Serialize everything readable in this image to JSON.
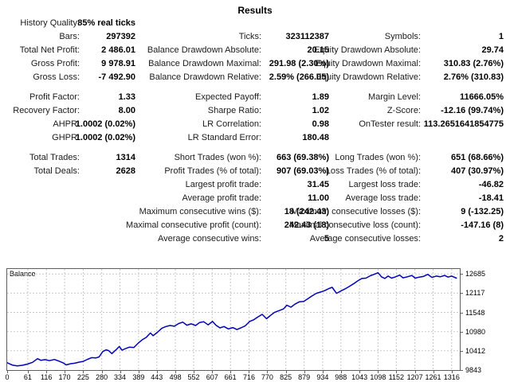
{
  "title": "Results",
  "stats_sections": [
    [
      [
        "History Quality:",
        "85% real ticks",
        "",
        "",
        "",
        ""
      ],
      [
        "Bars:",
        "297392",
        "Ticks:",
        "323112387",
        "Symbols:",
        "1"
      ],
      [
        "Total Net Profit:",
        "2 486.01",
        "Balance Drawdown Absolute:",
        "20.15",
        "Equity Drawdown Absolute:",
        "29.74"
      ],
      [
        "Gross Profit:",
        "9 978.91",
        "Balance Drawdown Maximal:",
        "291.98 (2.30%)",
        "Equity Drawdown Maximal:",
        "310.83 (2.76%)"
      ],
      [
        "Gross Loss:",
        "-7 492.90",
        "Balance Drawdown Relative:",
        "2.59% (266.05)",
        "Equity Drawdown Relative:",
        "2.76% (310.83)"
      ]
    ],
    [
      [
        "Profit Factor:",
        "1.33",
        "Expected Payoff:",
        "1.89",
        "Margin Level:",
        "11666.05%"
      ],
      [
        "Recovery Factor:",
        "8.00",
        "Sharpe Ratio:",
        "1.02",
        "Z-Score:",
        "-12.16 (99.74%)"
      ],
      [
        "AHPR:",
        "1.0002 (0.02%)",
        "LR Correlation:",
        "0.98",
        "OnTester result:",
        "113.2651641854775"
      ],
      [
        "GHPR:",
        "1.0002 (0.02%)",
        "LR Standard Error:",
        "180.48",
        "",
        ""
      ]
    ],
    [
      [
        "Total Trades:",
        "1314",
        "Short Trades (won %):",
        "663 (69.38%)",
        "Long Trades (won %):",
        "651 (68.66%)"
      ],
      [
        "Total Deals:",
        "2628",
        "Profit Trades (% of total):",
        "907 (69.03%)",
        "Loss Trades (% of total):",
        "407 (30.97%)"
      ],
      [
        "",
        "",
        "Largest profit trade:",
        "31.45",
        "Largest loss trade:",
        "-46.82"
      ],
      [
        "",
        "",
        "Average profit trade:",
        "11.00",
        "Average loss trade:",
        "-18.41"
      ],
      [
        "",
        "",
        "Maximum consecutive wins ($):",
        "18 (242.43)",
        "Maximum consecutive losses ($):",
        "9 (-132.25)"
      ],
      [
        "",
        "",
        "Maximal consecutive profit (count):",
        "242.43 (18)",
        "Maximal consecutive loss (count):",
        "-147.16 (8)"
      ],
      [
        "",
        "",
        "Average consecutive wins:",
        "5",
        "Average consecutive losses:",
        "2"
      ]
    ]
  ],
  "chart_data": {
    "type": "line",
    "title": "Balance",
    "series_label": "Balance",
    "xlabel": "",
    "ylabel": "",
    "legend_position": "top-left-inside",
    "grid": true,
    "line_color": "#0000bb",
    "grid_color": "#c8c8c8",
    "x_ticks": [
      0,
      61,
      116,
      170,
      225,
      280,
      334,
      389,
      443,
      498,
      552,
      607,
      661,
      716,
      770,
      825,
      879,
      934,
      988,
      1043,
      1098,
      1152,
      1207,
      1261,
      1316
    ],
    "y_ticks": [
      9843,
      10412,
      10980,
      11548,
      12117,
      12685
    ],
    "xlim": [
      0,
      1340
    ],
    "ylim": [
      9843,
      12830
    ],
    "points": [
      [
        0,
        10060
      ],
      [
        15,
        9990
      ],
      [
        30,
        9965
      ],
      [
        45,
        9985
      ],
      [
        60,
        10020
      ],
      [
        75,
        10070
      ],
      [
        90,
        10180
      ],
      [
        100,
        10130
      ],
      [
        112,
        10150
      ],
      [
        125,
        10120
      ],
      [
        140,
        10155
      ],
      [
        152,
        10110
      ],
      [
        165,
        10060
      ],
      [
        175,
        9995
      ],
      [
        188,
        10030
      ],
      [
        200,
        10045
      ],
      [
        212,
        10075
      ],
      [
        225,
        10100
      ],
      [
        238,
        10160
      ],
      [
        250,
        10210
      ],
      [
        262,
        10200
      ],
      [
        272,
        10230
      ],
      [
        283,
        10390
      ],
      [
        293,
        10440
      ],
      [
        300,
        10420
      ],
      [
        310,
        10330
      ],
      [
        322,
        10440
      ],
      [
        332,
        10540
      ],
      [
        340,
        10430
      ],
      [
        350,
        10475
      ],
      [
        362,
        10520
      ],
      [
        375,
        10510
      ],
      [
        388,
        10640
      ],
      [
        400,
        10740
      ],
      [
        412,
        10810
      ],
      [
        424,
        10940
      ],
      [
        432,
        10860
      ],
      [
        445,
        10960
      ],
      [
        458,
        11080
      ],
      [
        470,
        11130
      ],
      [
        482,
        11160
      ],
      [
        495,
        11140
      ],
      [
        508,
        11220
      ],
      [
        520,
        11260
      ],
      [
        532,
        11170
      ],
      [
        545,
        11210
      ],
      [
        558,
        11160
      ],
      [
        570,
        11250
      ],
      [
        582,
        11270
      ],
      [
        595,
        11180
      ],
      [
        608,
        11280
      ],
      [
        618,
        11170
      ],
      [
        630,
        11090
      ],
      [
        642,
        11130
      ],
      [
        655,
        11060
      ],
      [
        668,
        11100
      ],
      [
        680,
        11040
      ],
      [
        692,
        11090
      ],
      [
        705,
        11150
      ],
      [
        718,
        11280
      ],
      [
        730,
        11330
      ],
      [
        742,
        11410
      ],
      [
        755,
        11490
      ],
      [
        768,
        11360
      ],
      [
        780,
        11460
      ],
      [
        792,
        11550
      ],
      [
        805,
        11600
      ],
      [
        818,
        11650
      ],
      [
        828,
        11760
      ],
      [
        840,
        11700
      ],
      [
        852,
        11790
      ],
      [
        865,
        11860
      ],
      [
        878,
        11870
      ],
      [
        890,
        11950
      ],
      [
        902,
        12030
      ],
      [
        915,
        12110
      ],
      [
        928,
        12150
      ],
      [
        940,
        12190
      ],
      [
        952,
        12250
      ],
      [
        962,
        12290
      ],
      [
        975,
        12110
      ],
      [
        988,
        12180
      ],
      [
        1000,
        12240
      ],
      [
        1012,
        12310
      ],
      [
        1025,
        12390
      ],
      [
        1038,
        12480
      ],
      [
        1050,
        12550
      ],
      [
        1062,
        12560
      ],
      [
        1075,
        12630
      ],
      [
        1088,
        12680
      ],
      [
        1098,
        12720
      ],
      [
        1108,
        12600
      ],
      [
        1118,
        12550
      ],
      [
        1128,
        12620
      ],
      [
        1138,
        12560
      ],
      [
        1150,
        12600
      ],
      [
        1162,
        12650
      ],
      [
        1172,
        12570
      ],
      [
        1185,
        12600
      ],
      [
        1198,
        12640
      ],
      [
        1208,
        12560
      ],
      [
        1220,
        12590
      ],
      [
        1232,
        12610
      ],
      [
        1245,
        12670
      ],
      [
        1258,
        12580
      ],
      [
        1270,
        12620
      ],
      [
        1282,
        12600
      ],
      [
        1295,
        12640
      ],
      [
        1305,
        12590
      ],
      [
        1316,
        12620
      ],
      [
        1330,
        12560
      ]
    ]
  }
}
